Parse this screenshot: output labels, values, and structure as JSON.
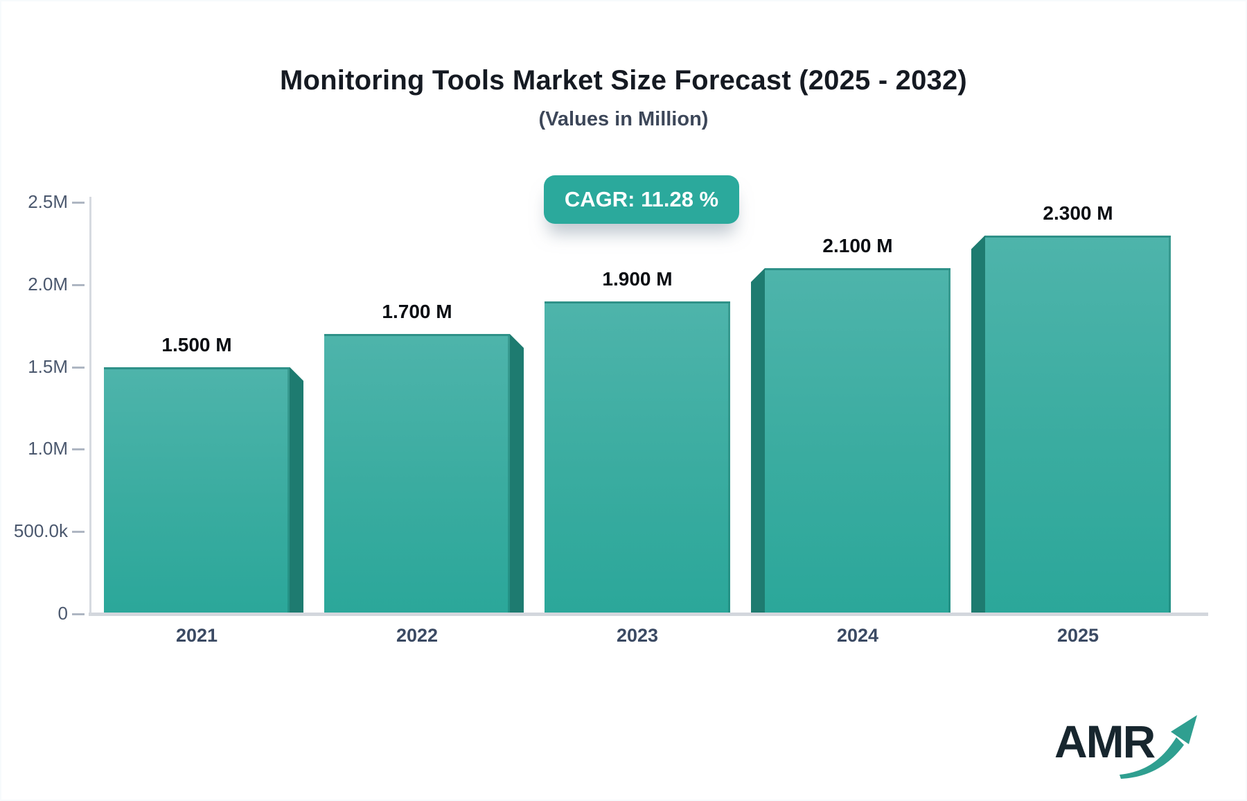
{
  "header": {
    "title": "Monitoring Tools Market Size Forecast (2025 - 2032)",
    "subtitle": "(Values in Million)"
  },
  "badge": {
    "label": "CAGR: 11.28 %"
  },
  "logo": {
    "text": "AMR",
    "arrow_icon": "trend-up-arrow"
  },
  "colors": {
    "bar_top": "#4eb4ab",
    "bar_bottom": "#2ba79a",
    "bar_side": "#1e7b70",
    "badge_bg": "#2ba99c",
    "badge_text": "#ffffff",
    "axis": "#d3d7dd",
    "tick_text": "#4b586e",
    "year_text": "#3b4a63",
    "value_text": "#0a0d12",
    "logo_text": "#17262e",
    "logo_arrow": "#2f9f90"
  },
  "chart_data": {
    "type": "bar",
    "title": "Monitoring Tools Market Size Forecast (2025 - 2032)",
    "subtitle": "(Values in Million)",
    "annotation": "CAGR: 11.28 %",
    "unit": "Million",
    "categories": [
      "2021",
      "2022",
      "2023",
      "2024",
      "2025"
    ],
    "values": [
      1.5,
      1.7,
      1.9,
      2.1,
      2.3
    ],
    "value_labels": [
      "1.500 M",
      "1.700 M",
      "1.900 M",
      "2.100 M",
      "2.300 M"
    ],
    "xlabel": "",
    "ylabel": "",
    "ylim": [
      0,
      2.5
    ],
    "yticks": [
      {
        "value": 0,
        "label": "0"
      },
      {
        "value": 0.5,
        "label": "500.0k"
      },
      {
        "value": 1.0,
        "label": "1.0M"
      },
      {
        "value": 1.5,
        "label": "1.5M"
      },
      {
        "value": 2.0,
        "label": "2.0M"
      },
      {
        "value": 2.5,
        "label": "2.5M"
      }
    ],
    "grid": false,
    "legend": null
  }
}
